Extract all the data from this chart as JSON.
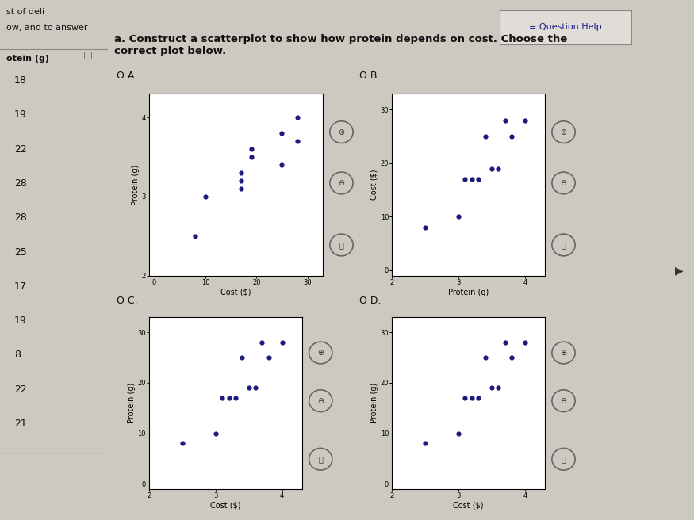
{
  "bg_color": "#cdc9c0",
  "plot_area_bg": "#ddd9d0",
  "title_text": "a. Construct a scatterplot to show how protein depends on cost. Choose the\ncorrect plot below.",
  "left_panel_title1": "st of deli",
  "left_panel_title2": "ow, and to answer",
  "left_col_label": "otein (g)",
  "left_col_values": [
    18,
    19,
    22,
    28,
    28,
    25,
    17,
    19,
    8,
    22,
    21
  ],
  "question_help_text": "≡ Question Help",
  "dot_color": "#1a1a7e",
  "dot_size": 12,
  "font_color": "#111111",
  "plot_A": {
    "label": "A.",
    "xlabel": "Cost ($)",
    "ylabel": "Protein (g)",
    "xlim": [
      -1,
      33
    ],
    "ylim": [
      2.0,
      4.3
    ],
    "xticks": [
      0,
      10,
      20,
      30
    ],
    "yticks": [
      2,
      3,
      4
    ],
    "x": [
      8,
      10,
      17,
      17,
      17,
      19,
      19,
      25,
      25,
      28,
      28
    ],
    "y": [
      2.5,
      3.0,
      3.1,
      3.2,
      3.3,
      3.5,
      3.6,
      3.4,
      3.8,
      3.7,
      4.0
    ]
  },
  "plot_B": {
    "label": "B.",
    "xlabel": "Protein (g)",
    "ylabel": "Cost ($)",
    "xlim": [
      2.0,
      4.3
    ],
    "ylim": [
      -1,
      33
    ],
    "xticks": [
      2,
      3,
      4
    ],
    "yticks": [
      0,
      10,
      20,
      30
    ],
    "x": [
      2.5,
      3.0,
      3.1,
      3.2,
      3.3,
      3.5,
      3.6,
      3.4,
      3.8,
      3.7,
      4.0
    ],
    "y": [
      8,
      10,
      17,
      17,
      17,
      19,
      19,
      25,
      25,
      28,
      28
    ]
  },
  "plot_C": {
    "label": "C.",
    "xlabel": "Cost ($)",
    "ylabel": "Protein (g)",
    "xlim": [
      2.0,
      4.3
    ],
    "ylim": [
      -1,
      33
    ],
    "xticks": [
      2,
      3,
      4
    ],
    "yticks": [
      0,
      10,
      20,
      30
    ],
    "x": [
      2.5,
      3.0,
      3.1,
      3.2,
      3.3,
      3.5,
      3.6,
      3.4,
      3.8,
      3.7,
      4.0
    ],
    "y": [
      8,
      10,
      17,
      17,
      17,
      19,
      19,
      25,
      25,
      28,
      28
    ]
  },
  "plot_D": {
    "label": "D.",
    "xlabel": "Cost ($)",
    "ylabel": "Protein (g)",
    "xlim": [
      2.0,
      4.3
    ],
    "ylim": [
      -1,
      33
    ],
    "xticks": [
      2,
      3,
      4
    ],
    "yticks": [
      0,
      10,
      20,
      30
    ],
    "x": [
      2.5,
      3.0,
      3.1,
      3.2,
      3.3,
      3.5,
      3.6,
      3.4,
      3.8,
      3.7,
      4.0
    ],
    "y": [
      8,
      10,
      17,
      17,
      17,
      19,
      19,
      25,
      25,
      28,
      28
    ]
  }
}
